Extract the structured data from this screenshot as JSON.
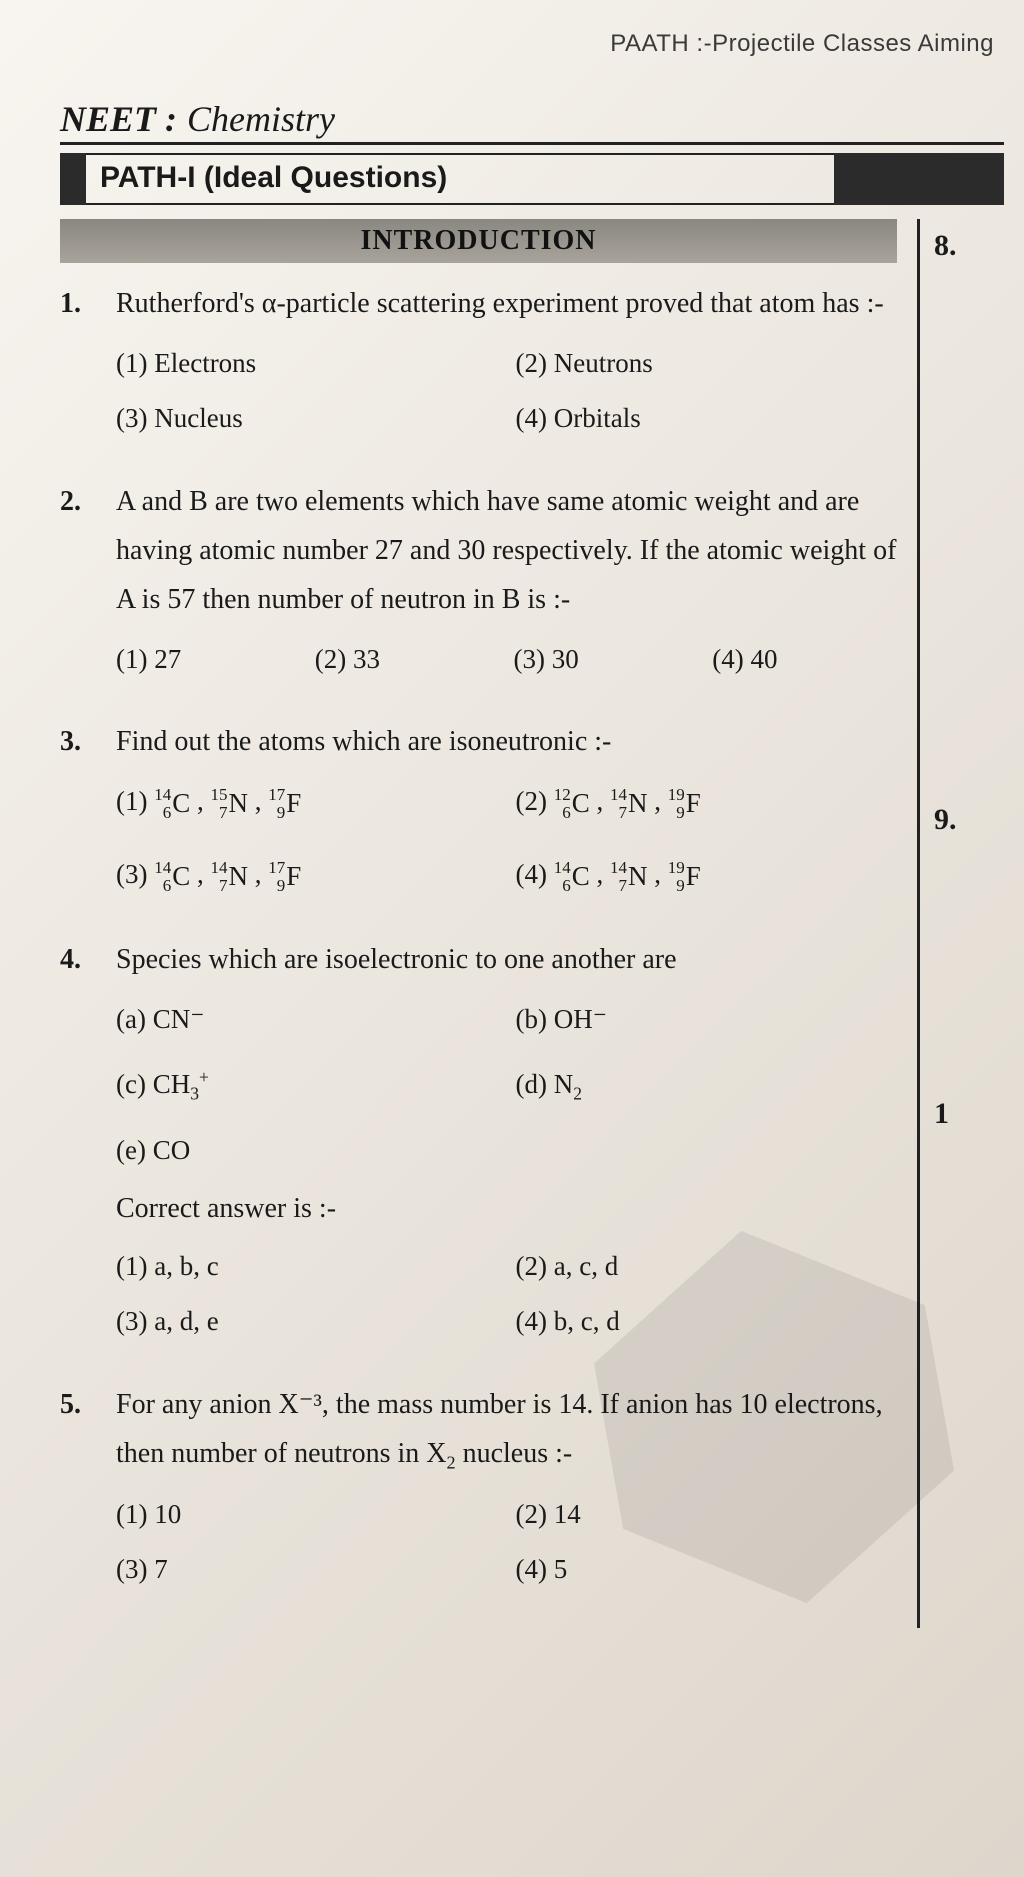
{
  "header": {
    "brand": "PAATH :-Projectile Classes Aiming",
    "exam_label": "NEET :",
    "subject": "Chemistry",
    "path_title": "PATH-I (Ideal Questions)",
    "section_title": "INTRODUCTION"
  },
  "right_margin": {
    "n1": "8.",
    "n2": "9.",
    "n3": "1"
  },
  "questions": [
    {
      "num": "1.",
      "text": "Rutherford's α-particle scattering experiment proved that atom has :-",
      "layout": "2col",
      "options": [
        "(1) Electrons",
        "(2) Neutrons",
        "(3) Nucleus",
        "(4) Orbitals"
      ]
    },
    {
      "num": "2.",
      "text": "A and B are two elements which have same atomic weight and are having atomic number 27 and 30 respectively. If the atomic weight of A is 57 then number of neutron in B is :-",
      "layout": "4col",
      "options": [
        "(1) 27",
        "(2) 33",
        "(3) 30",
        "(4) 40"
      ]
    },
    {
      "num": "3.",
      "text": "Find out the atoms which are isoneutronic :-",
      "layout": "iso",
      "iso_options": [
        {
          "label": "(1)",
          "atoms": [
            {
              "a": "14",
              "z": "6",
              "e": "C"
            },
            {
              "a": "15",
              "z": "7",
              "e": "N"
            },
            {
              "a": "17",
              "z": "9",
              "e": "F"
            }
          ]
        },
        {
          "label": "(2)",
          "atoms": [
            {
              "a": "12",
              "z": "6",
              "e": "C"
            },
            {
              "a": "14",
              "z": "7",
              "e": "N"
            },
            {
              "a": "19",
              "z": "9",
              "e": "F"
            }
          ]
        },
        {
          "label": "(3)",
          "atoms": [
            {
              "a": "14",
              "z": "6",
              "e": "C"
            },
            {
              "a": "14",
              "z": "7",
              "e": "N"
            },
            {
              "a": "17",
              "z": "9",
              "e": "F"
            }
          ]
        },
        {
          "label": "(4)",
          "atoms": [
            {
              "a": "14",
              "z": "6",
              "e": "C"
            },
            {
              "a": "14",
              "z": "7",
              "e": "N"
            },
            {
              "a": "19",
              "z": "9",
              "e": "F"
            }
          ]
        }
      ]
    },
    {
      "num": "4.",
      "text": "Species which are isoelectronic to one another are",
      "layout": "species",
      "species": {
        "a": "(a) CN⁻",
        "b": "(b) OH⁻",
        "c_label": "(c) CH",
        "c_sub": "3",
        "c_sup": "+",
        "d_label": "(d) N",
        "d_sub": "2",
        "e": "(e) CO"
      },
      "answer_label": "Correct answer is :-",
      "options": [
        "(1) a, b, c",
        "(2) a, c, d",
        "(3) a, d, e",
        "(4) b, c, d"
      ]
    },
    {
      "num": "5.",
      "text_pre": "For any anion X⁻³, the mass number is 14. If anion has 10 electrons, then number of neutrons in X",
      "text_sub": "2",
      "text_post": " nucleus :-",
      "layout": "2col",
      "options": [
        "(1) 10",
        "(2) 14",
        "(3) 7",
        "(4) 5"
      ]
    }
  ]
}
